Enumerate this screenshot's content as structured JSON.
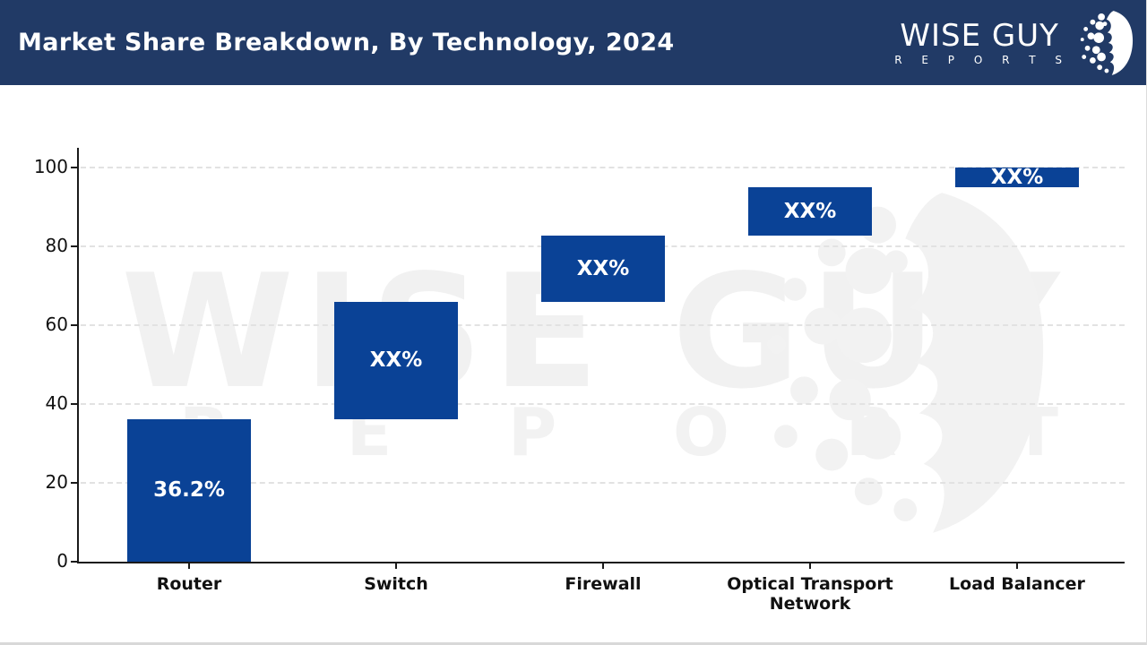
{
  "header": {
    "title": "Market Share Breakdown, By Technology, 2024",
    "bg_color": "#213a66",
    "logo": {
      "line1": "WISE GUY",
      "line2": "REPORTS"
    }
  },
  "watermark": {
    "line1": "WISE GUY",
    "line2": "REPORTS"
  },
  "chart_data": {
    "type": "bar",
    "subtype": "waterfall",
    "title": "Market Share Breakdown, By Technology, 2024",
    "xlabel": "",
    "ylabel": "",
    "categories": [
      "Router",
      "Switch",
      "Firewall",
      "Optical Transport Network",
      "Load Balancer"
    ],
    "segments": [
      {
        "category": "Router",
        "start": 0,
        "end": 36.2,
        "value_label": "36.2%"
      },
      {
        "category": "Switch",
        "start": 36.2,
        "end": 66.0,
        "value_label": "XX%"
      },
      {
        "category": "Firewall",
        "start": 66.0,
        "end": 82.7,
        "value_label": "XX%"
      },
      {
        "category": "Optical Transport Network",
        "start": 82.7,
        "end": 95.0,
        "value_label": "XX%"
      },
      {
        "category": "Load Balancer",
        "start": 95.0,
        "end": 100.0,
        "value_label": "XX%"
      }
    ],
    "yticks": [
      0,
      20,
      40,
      60,
      80,
      100
    ],
    "ylim": [
      0,
      105
    ],
    "grid": "horizontal-dashed",
    "legend": "none",
    "bar_color": "#0a4296",
    "bar_label_color": "#ffffff",
    "axis_color": "#1a1a1a",
    "grid_color": "#e2e2e2"
  }
}
